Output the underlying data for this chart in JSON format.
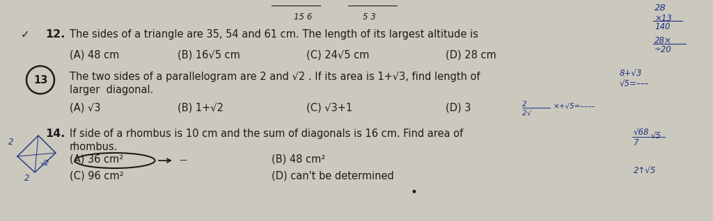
{
  "bg_color": "#cbc8be",
  "q12_text": "The sides of a triangle are 35, 54 and 61 cm. The length of its largest altitude is",
  "q12_options": [
    "(A) 48 cm",
    "(B) 16√5 cm",
    "(C) 24√5 cm",
    "(D) 28 cm"
  ],
  "q13_text": "The two sides of a parallelogram are 2 and √2 . If its area is 1+√3, find length of",
  "q13_text2": "larger  diagonal.",
  "q13_options": [
    "(A) √3",
    "(B) 1+√2",
    "(C) √3+1",
    "(D) 3"
  ],
  "q14_text": "If side of a rhombus is 10 cm and the sum of diagonals is 16 cm. Find area of",
  "q14_text2": "rhombus.",
  "q14_opt_left": [
    "(A) 36 cm²",
    "(C) 96 cm²"
  ],
  "q14_opt_right": [
    "(B) 48 cm²",
    "(D) can't be determined"
  ],
  "font_size_main": 10.5,
  "font_size_small": 8.5,
  "text_color": "#1c1c1c",
  "annot_color": "#1a3090",
  "handwrite_color": "#1c3080"
}
